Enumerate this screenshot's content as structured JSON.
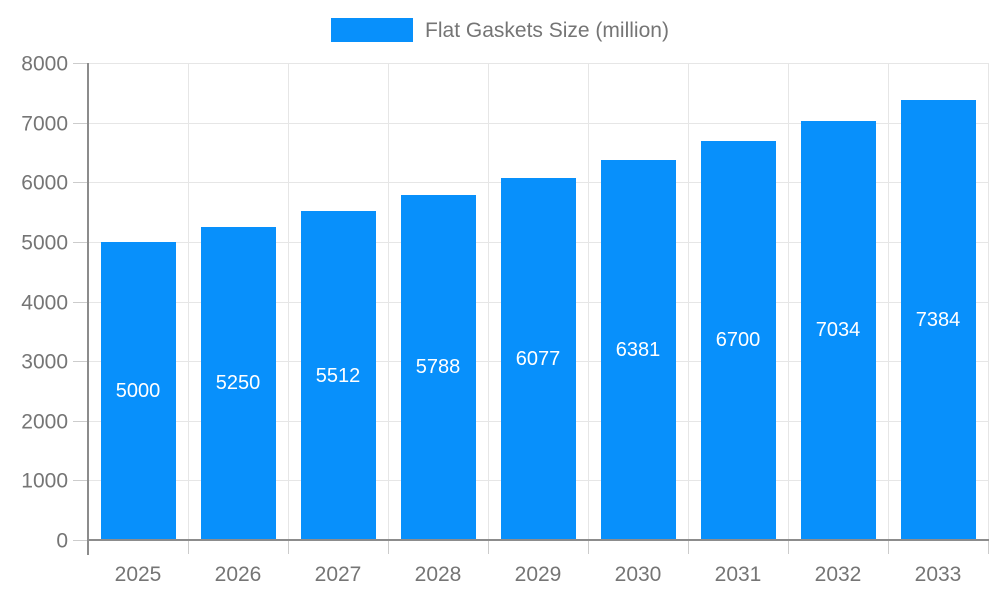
{
  "legend": {
    "label": "Flat Gaskets Size (million)"
  },
  "colors": {
    "bar": "#0890FB",
    "grid": "#e6e6e6",
    "tick": "#cccccc",
    "axis": "#8c8c8c",
    "axis_text": "#757575",
    "value_text": "#ffffff"
  },
  "chart_data": {
    "type": "bar",
    "title": "Flat Gaskets Size (million)",
    "categories": [
      "2025",
      "2026",
      "2027",
      "2028",
      "2029",
      "2030",
      "2031",
      "2032",
      "2033"
    ],
    "values": [
      5000,
      5250,
      5512,
      5788,
      6077,
      6381,
      6700,
      7034,
      7384
    ],
    "xlabel": "",
    "ylabel": "",
    "ylim": [
      0,
      8000
    ],
    "ytick_step": 1000,
    "ytick_labels": [
      "0",
      "1000",
      "2000",
      "3000",
      "4000",
      "5000",
      "6000",
      "7000",
      "8000"
    ],
    "grid": true,
    "legend_position": "top-center",
    "value_labels_position": "inside-middle"
  }
}
